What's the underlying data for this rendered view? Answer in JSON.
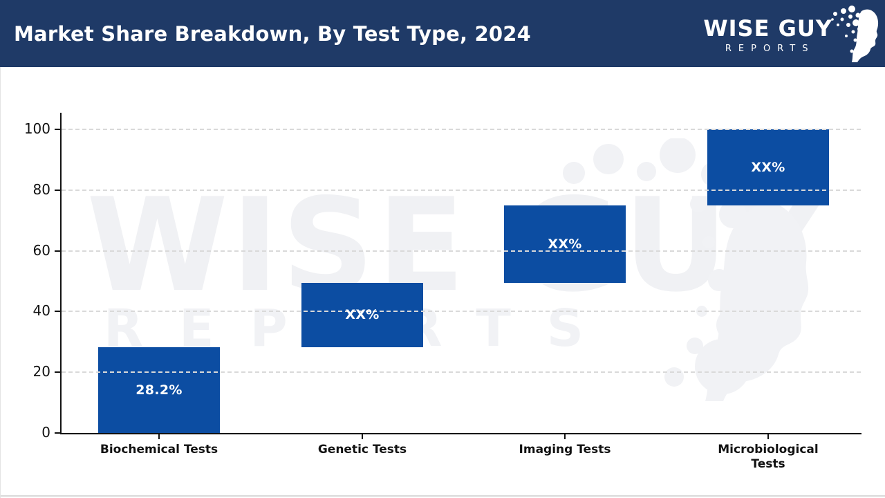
{
  "header": {
    "title": "Market Share Breakdown, By Test Type, 2024",
    "logo": {
      "line1": "WISE GUY",
      "line2": "REPORTS"
    }
  },
  "watermark": {
    "line1": "WISE GUY",
    "line2": "REPORTS"
  },
  "chart_data": {
    "type": "bar",
    "subtype": "waterfall",
    "title": "Market Share Breakdown, By Test Type, 2024",
    "categories": [
      "Biochemical Tests",
      "Genetic Tests",
      "Imaging Tests",
      "Microbiological Tests"
    ],
    "series": [
      {
        "name": "Market Share (%)",
        "segments": [
          {
            "category": "Biochemical Tests",
            "start": 0,
            "end": 28.2,
            "label": "28.2%"
          },
          {
            "category": "Genetic Tests",
            "start": 28.2,
            "end": 49.5,
            "label": "XX%"
          },
          {
            "category": "Imaging Tests",
            "start": 49.5,
            "end": 75,
            "label": "XX%"
          },
          {
            "category": "Microbiological Tests",
            "start": 75,
            "end": 100,
            "label": "XX%"
          }
        ]
      }
    ],
    "xlabel": "",
    "ylabel": "",
    "yticks": [
      0,
      20,
      40,
      60,
      80,
      100
    ],
    "ylim": [
      0,
      105
    ],
    "grid": "horizontal-dashed",
    "legend": "none",
    "bar_color": "#0c4da2",
    "bar_label_color": "#ffffff"
  },
  "colors": {
    "header_bg": "#1f3a67",
    "bar": "#0c4da2",
    "grid": "#d9d9d9",
    "axis": "#111111",
    "watermark": "#f0f1f4"
  }
}
